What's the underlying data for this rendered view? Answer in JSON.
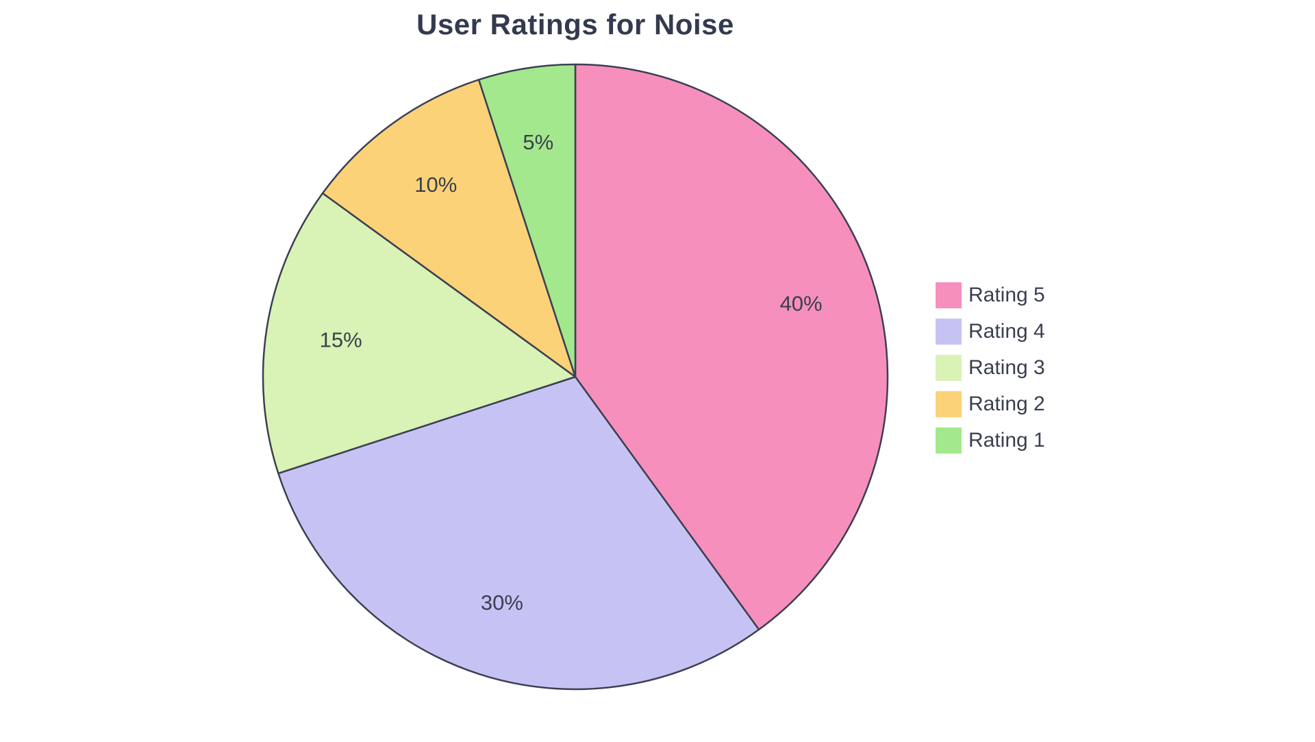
{
  "chart_data": {
    "type": "pie",
    "title": "User Ratings for Noise",
    "categories": [
      "Rating 5",
      "Rating 4",
      "Rating 3",
      "Rating 2",
      "Rating 1"
    ],
    "values": [
      40,
      30,
      15,
      10,
      5
    ],
    "labels": [
      "40%",
      "30%",
      "15%",
      "10%",
      "5%"
    ],
    "colors": [
      "#F78FBC",
      "#C6C3F4",
      "#D9F2B5",
      "#FBD277",
      "#A3E88C"
    ],
    "legend_position": "right",
    "start_angle_deg": 0,
    "direction": "clockwise",
    "grid": false
  },
  "style": {
    "background": "#FFFFFF",
    "stroke_color": "#3B3F53",
    "title_color": "#343A4E",
    "label_color": "#3A3F4E"
  }
}
